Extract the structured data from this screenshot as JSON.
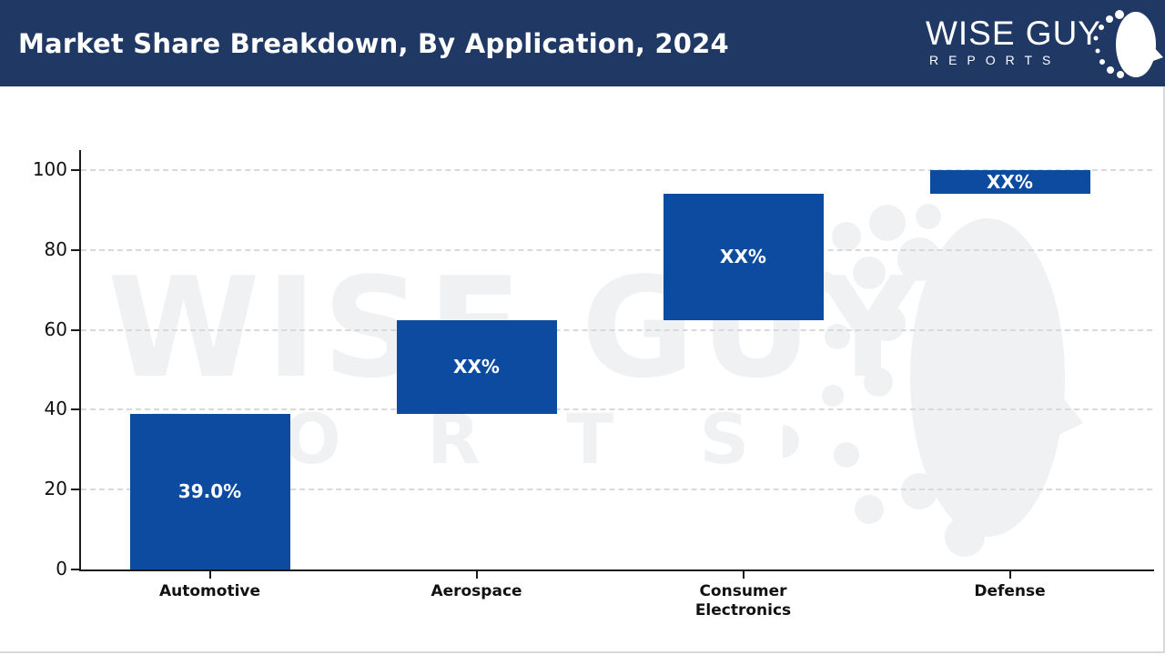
{
  "header": {
    "title": "Market Share Breakdown, By Application, 2024",
    "bg_color": "#203864",
    "logo": {
      "line1": "WISE GUY",
      "line2": "REPORTS"
    }
  },
  "watermark": {
    "line1": "WISE GUY",
    "line2": "P O R T S"
  },
  "chart_data": {
    "type": "bar",
    "subtype": "waterfall",
    "title": "Market Share Breakdown, By Application, 2024",
    "xlabel": "",
    "ylabel": "",
    "categories": [
      "Automotive",
      "Aerospace",
      "Consumer Electronics",
      "Defense"
    ],
    "segments": [
      {
        "category": "Automotive",
        "start": 0,
        "end": 39,
        "label": "39.0%"
      },
      {
        "category": "Aerospace",
        "start": 39,
        "end": 62.5,
        "label": "XX%"
      },
      {
        "category": "Consumer Electronics",
        "start": 62.5,
        "end": 94,
        "label": "XX%"
      },
      {
        "category": "Defense",
        "start": 94,
        "end": 100,
        "label": "XX%"
      }
    ],
    "y_ticks": [
      0,
      20,
      40,
      60,
      80,
      100
    ],
    "ylim": [
      0,
      105
    ],
    "bar_color": "#0c4ba0",
    "bar_label_color": "#ffffff",
    "grid": "horizontal dashed",
    "gridline_color": "#d9d9d9",
    "legend": "none"
  }
}
